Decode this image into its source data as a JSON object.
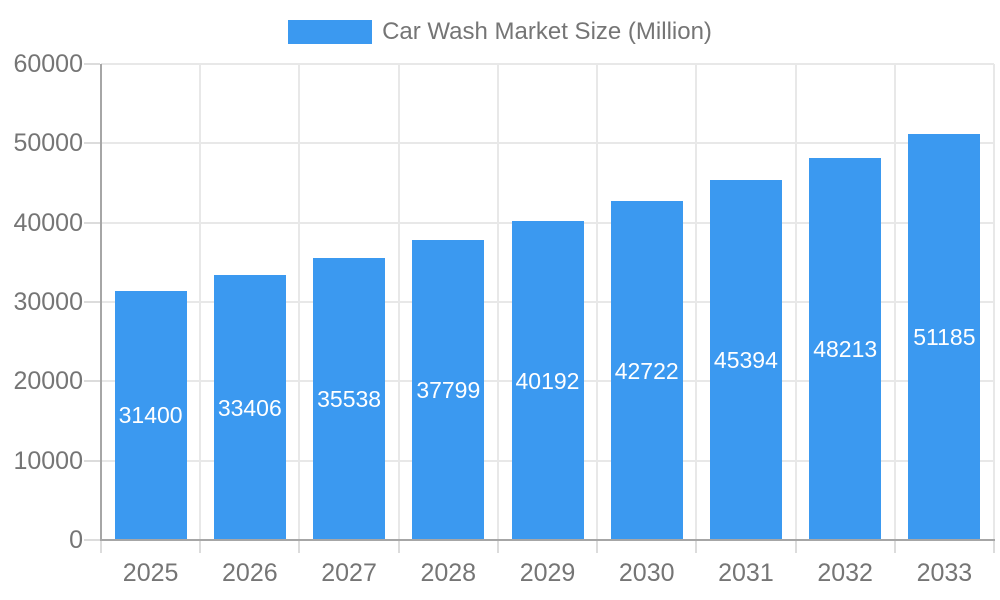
{
  "chart_data": {
    "type": "bar",
    "title": "Car Wash Market Size (Million)",
    "legend": {
      "position": "top",
      "label": "Car Wash Market Size (Million)"
    },
    "categories": [
      "2025",
      "2026",
      "2027",
      "2028",
      "2029",
      "2030",
      "2031",
      "2032",
      "2033"
    ],
    "values": [
      31400,
      33406,
      35538,
      37799,
      40192,
      42722,
      45394,
      48213,
      51185
    ],
    "xlabel": "",
    "ylabel": "",
    "ylim": [
      0,
      60000
    ],
    "yticks": [
      0,
      10000,
      20000,
      30000,
      40000,
      50000,
      60000
    ],
    "grid": true,
    "bar_value_labels_shown": true
  },
  "colors": {
    "bar": "#3B99F0",
    "bar_label_text": "#FFFFFF",
    "axis_text": "#757575",
    "axis_line": "#A6A6A6",
    "gridline": "#E8E8E8",
    "tick": "#DCDCDC",
    "background": "#FFFFFF"
  }
}
